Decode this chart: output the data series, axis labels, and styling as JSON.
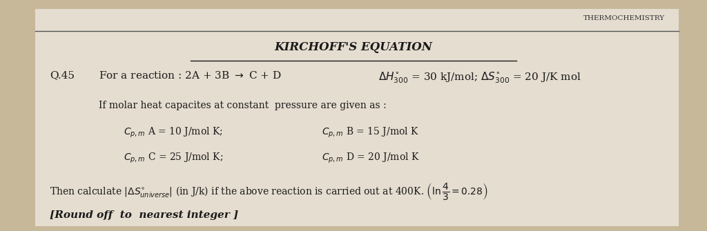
{
  "bg_color": "#c8b89a",
  "paper_color": "#e5ddd0",
  "top_label": "THERMOCHEMISTRY",
  "title": "KIRCHOFF'S EQUATION",
  "q_number": "Q.45",
  "title_fontsize": 12,
  "text_fontsize": 11,
  "small_fontsize": 10
}
